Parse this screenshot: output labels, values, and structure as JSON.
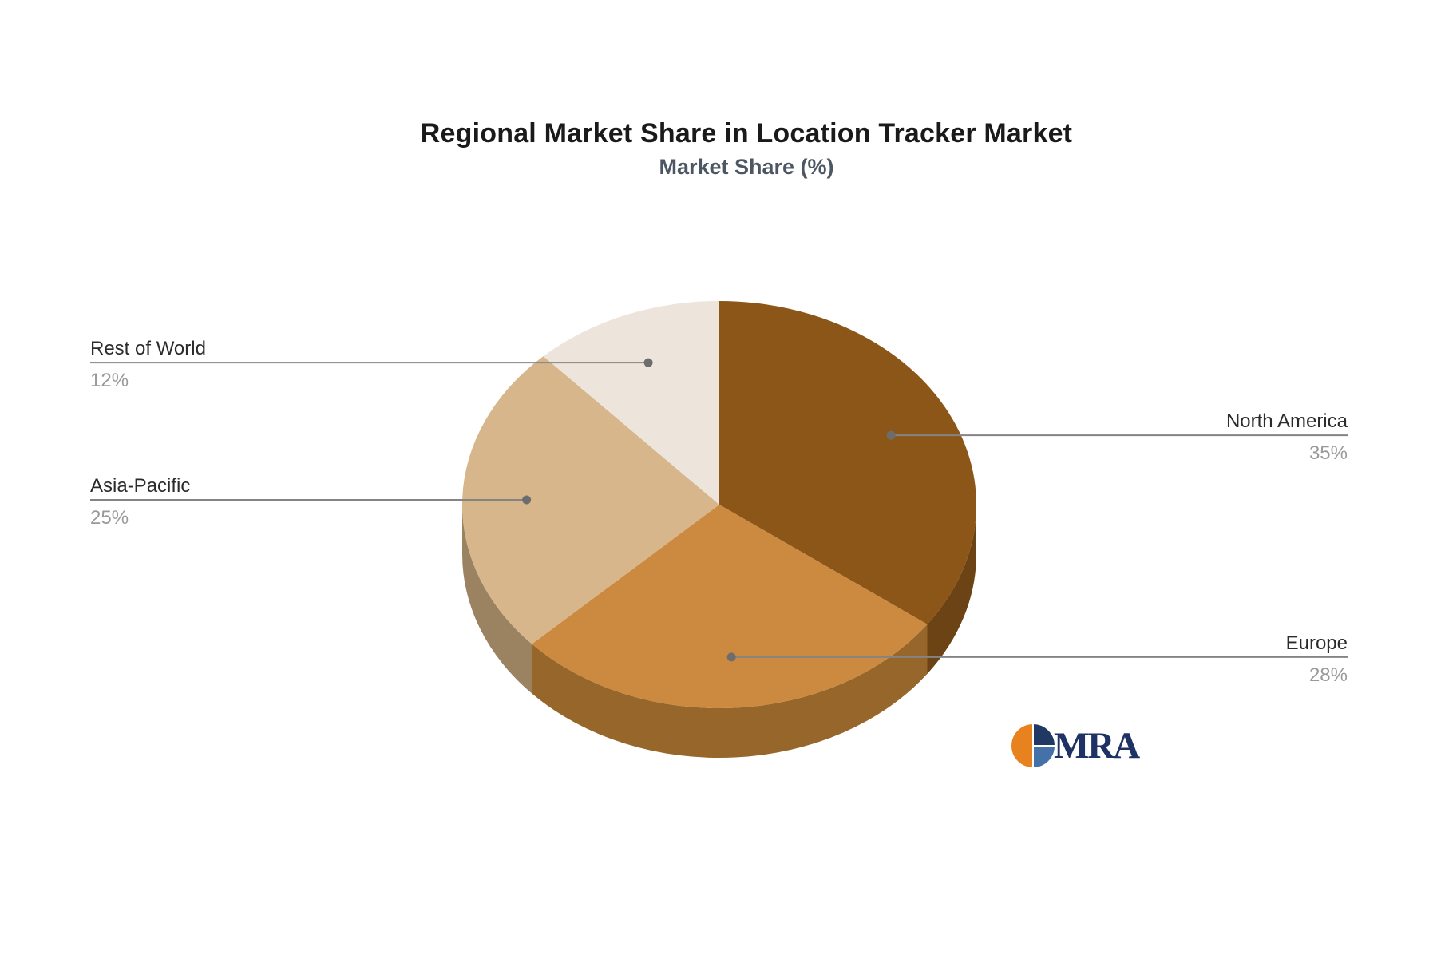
{
  "chart_data": {
    "type": "pie",
    "title": "Regional Market Share in Location Tracker Market",
    "subtitle": "Market Share (%)",
    "unit": "%",
    "style_3d": true,
    "start_angle": "12-o-clock",
    "direction": "clockwise",
    "legend": "none",
    "categories": [
      "North America",
      "Europe",
      "Asia-Pacific",
      "Rest of World"
    ],
    "values": [
      35,
      28,
      25,
      12
    ],
    "slices": [
      {
        "label": "North America",
        "value": 35,
        "pct_label": "35%",
        "color": "#8c5618",
        "side_color": "#6b4315",
        "label_side": "right"
      },
      {
        "label": "Europe",
        "value": 28,
        "pct_label": "28%",
        "color": "#cc8a40",
        "side_color": "#96662a",
        "label_side": "right"
      },
      {
        "label": "Asia-Pacific",
        "value": 25,
        "pct_label": "25%",
        "color": "#d7b68c",
        "side_color": "#9b8261",
        "label_side": "left"
      },
      {
        "label": "Rest of World",
        "value": 12,
        "pct_label": "12%",
        "color": "#ede4dc",
        "side_color": "#b3a99f",
        "label_side": "left"
      }
    ],
    "leader_line_color": "#848484",
    "leader_dot_color": "#6d6d6d",
    "label_name_color": "#2b2b2b",
    "label_pct_color": "#999999"
  },
  "logo": {
    "text": "MRA",
    "text_color": "#1e3263",
    "icon_orange": "#e8821e",
    "icon_navy": "#1f3864",
    "icon_blue": "#4472a8"
  }
}
